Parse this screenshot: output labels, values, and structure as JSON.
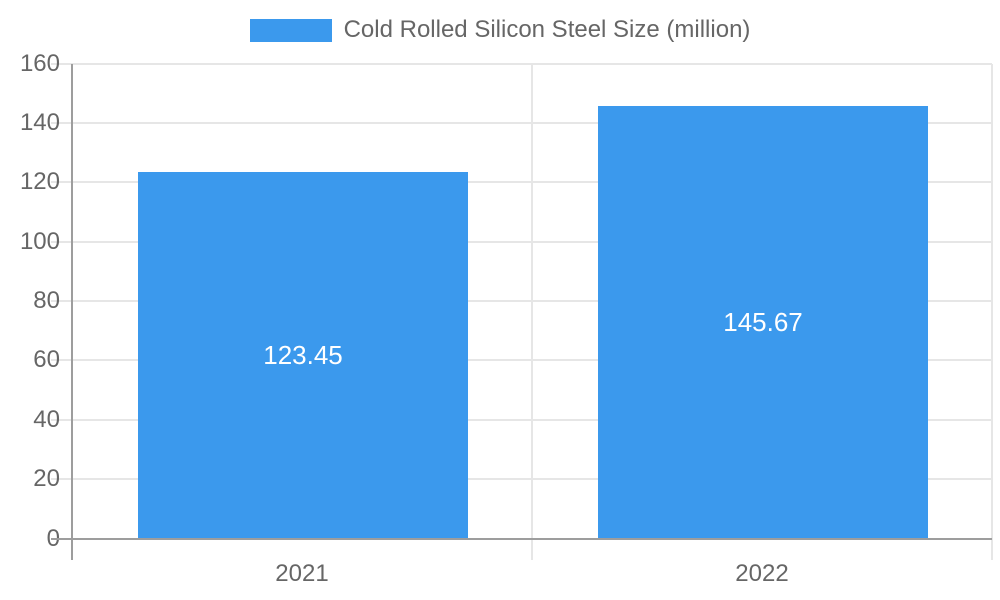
{
  "chart_data": {
    "type": "bar",
    "title": "Cold Rolled Silicon Steel Size (million)",
    "categories": [
      "2021",
      "2022"
    ],
    "series": [
      {
        "name": "Cold Rolled Silicon Steel Size (million)",
        "values": [
          123.45,
          145.67
        ]
      }
    ],
    "value_labels": [
      "123.45",
      "145.67"
    ],
    "xlabel": "",
    "ylabel": "",
    "ylim": [
      0,
      160
    ],
    "y_tick_step": 20,
    "y_ticks": [
      "0",
      "20",
      "40",
      "60",
      "80",
      "100",
      "120",
      "140",
      "160"
    ],
    "grid": true,
    "legend_position": "top-center",
    "colors": {
      "bar": "#3b99ed",
      "axis_line": "#9d9d9d",
      "grid_line": "#e6e6e6",
      "tick_text": "#666666",
      "legend_text": "#666666",
      "data_label": "#ffffff",
      "background": "#ffffff"
    }
  },
  "legend": {
    "label": "Cold Rolled Silicon Steel Size (million)"
  }
}
